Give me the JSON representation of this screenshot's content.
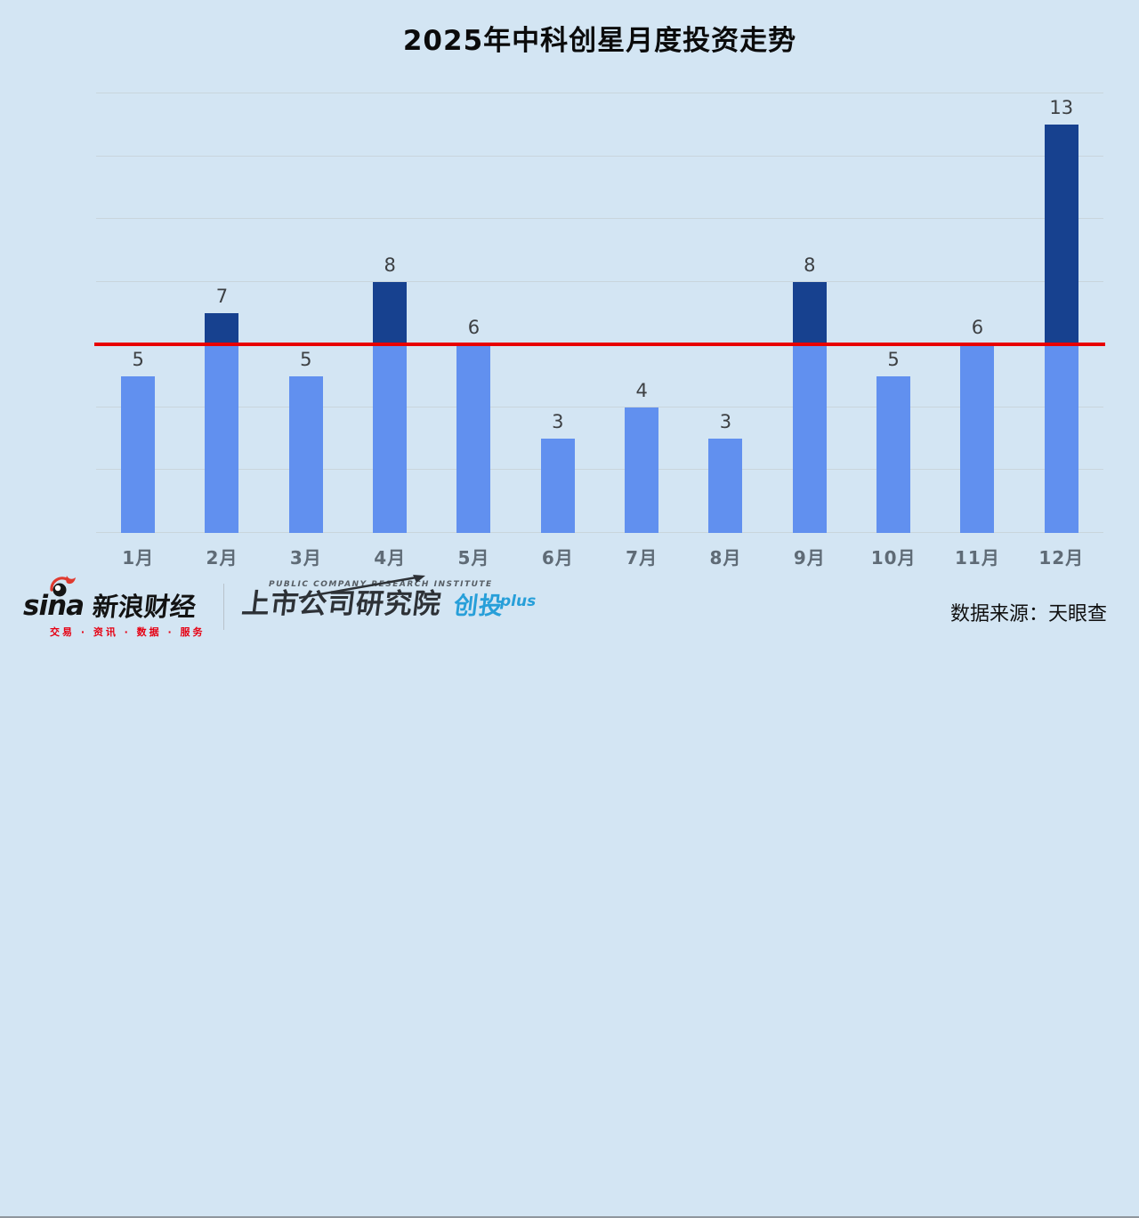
{
  "chart_data": {
    "type": "bar",
    "title": "2025年中科创星月度投资走势",
    "categories": [
      "1月",
      "2月",
      "3月",
      "4月",
      "5月",
      "6月",
      "7月",
      "8月",
      "9月",
      "10月",
      "11月",
      "12月"
    ],
    "values": [
      5,
      7,
      5,
      8,
      6,
      3,
      4,
      3,
      8,
      5,
      6,
      13
    ],
    "xlabel": "",
    "ylabel": "",
    "ylim": [
      0,
      14
    ],
    "gridline_step": 2,
    "grid": true,
    "legend": false,
    "reference_line": 6,
    "colors": {
      "background": "#d3e5f3",
      "bar_below_line": "#6190ef",
      "bar_above_line": "#17418f",
      "reference_line": "#e80000",
      "gridline": "#c9d5dc",
      "value_label": "#3d4043",
      "month_label": "#5f6b76"
    }
  },
  "footer": {
    "sina": {
      "brand": "sina",
      "name": "新浪财经",
      "tagline": "交易 · 资讯 · 数据 · 服务"
    },
    "institute": {
      "en": "PUBLIC COMPANY RESEARCH INSTITUTE",
      "cn": "上市公司研究院",
      "sub_brand": "创投",
      "sub_brand_suffix": "plus"
    },
    "source": "数据来源：天眼查"
  }
}
